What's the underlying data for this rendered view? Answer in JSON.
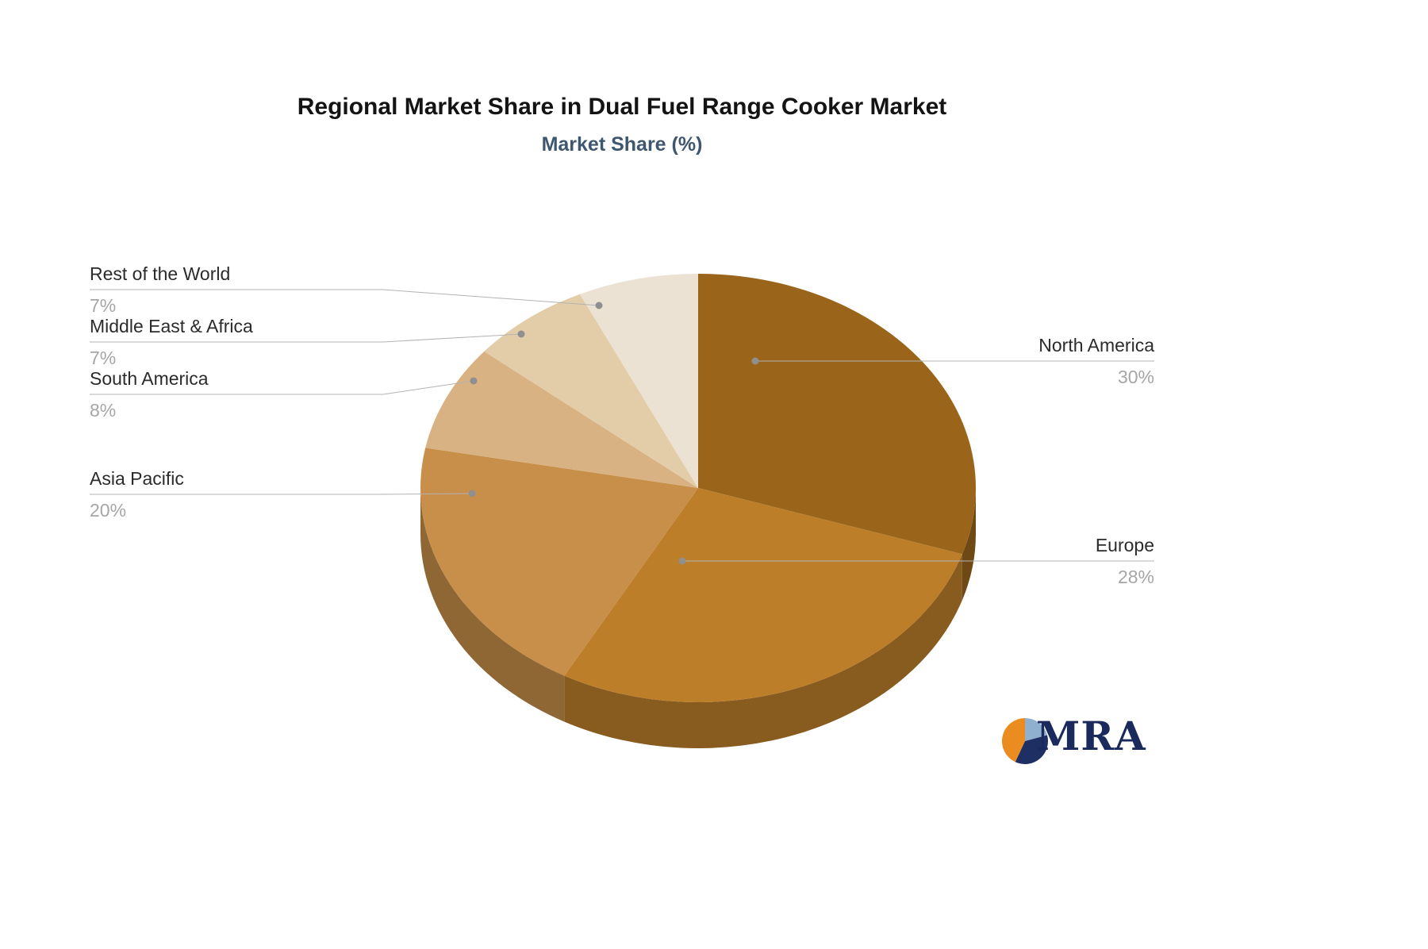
{
  "header": {
    "title": "Regional Market Share in Dual Fuel Range Cooker Market",
    "subtitle": "Market Share (%)"
  },
  "logo": {
    "text": "MRA",
    "colors": {
      "orange": "#ea8c1f",
      "navy": "#1d2f63",
      "light_blue": "#8fb0cf",
      "text_navy": "#1b2a5c"
    }
  },
  "chart_data": {
    "type": "pie",
    "style": "3d",
    "title": "Regional Market Share in Dual Fuel Range Cooker Market",
    "subtitle": "Market Share (%)",
    "unit": "%",
    "total": 100,
    "direction": "clockwise",
    "start": "top",
    "legend_position": "none",
    "label_format": "name above leader line, percent below",
    "slices": [
      {
        "label": "North America",
        "value": 30,
        "percent_label": "30%",
        "color": "#9a651b",
        "label_side": "right"
      },
      {
        "label": "Europe",
        "value": 28,
        "percent_label": "28%",
        "color": "#bd7e2a",
        "label_side": "right"
      },
      {
        "label": "Asia Pacific",
        "value": 20,
        "percent_label": "20%",
        "color": "#c78f49",
        "label_side": "left"
      },
      {
        "label": "South America",
        "value": 8,
        "percent_label": "8%",
        "color": "#d8b282",
        "label_side": "left"
      },
      {
        "label": "Middle East & Africa",
        "value": 7,
        "percent_label": "7%",
        "color": "#e3cda9",
        "label_side": "left"
      },
      {
        "label": "Rest of the World",
        "value": 7,
        "percent_label": "7%",
        "color": "#ece2d3",
        "label_side": "left"
      }
    ]
  }
}
